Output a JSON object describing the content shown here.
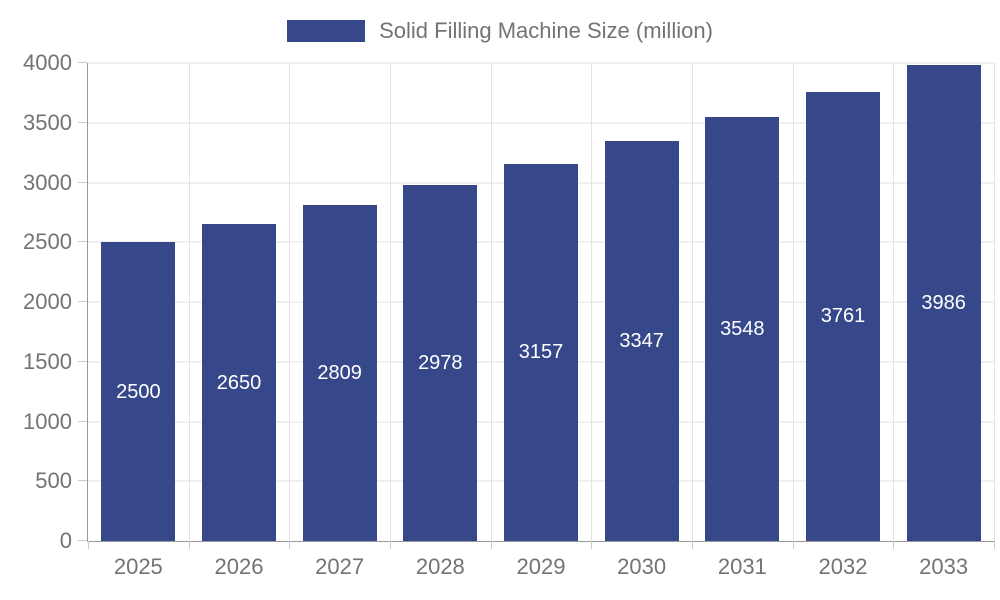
{
  "legend": {
    "label": "Solid Filling Machine Size (million)"
  },
  "chart_data": {
    "type": "bar",
    "title": "Solid Filling Machine Size (million)",
    "categories": [
      "2025",
      "2026",
      "2027",
      "2028",
      "2029",
      "2030",
      "2031",
      "2032",
      "2033"
    ],
    "values": [
      2500,
      2650,
      2809,
      2978,
      3157,
      3347,
      3548,
      3761,
      3986
    ],
    "series": [
      {
        "name": "Solid Filling Machine Size (million)",
        "values": [
          2500,
          2650,
          2809,
          2978,
          3157,
          3347,
          3548,
          3761,
          3986
        ]
      }
    ],
    "xlabel": "",
    "ylabel": "",
    "ylim": [
      0,
      4000
    ],
    "ytick_step": 500,
    "grid": true,
    "value_labels": "inside-center",
    "legend_position": "top-center",
    "colors": {
      "bar": "#36488A",
      "axis_text": "#737373",
      "gridline": "#E2E2E2",
      "axis_line": "#999999",
      "tick": "#C6CAD5",
      "value_text": "#FFFFFF"
    }
  }
}
